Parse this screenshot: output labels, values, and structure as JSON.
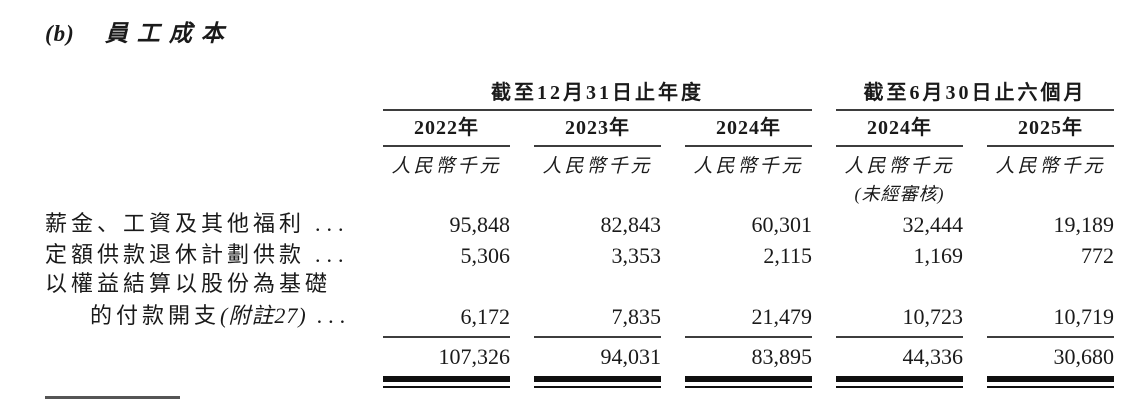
{
  "colors": {
    "text": "#1a1a1a",
    "rule": "#3d3d3d",
    "total_rule": "#101010",
    "footnote_rule": "#555555",
    "background": "#ffffff"
  },
  "heading": {
    "marker": "(b)",
    "title": "員工成本"
  },
  "table": {
    "groups": [
      {
        "label": "截至12月31日止年度",
        "span": 3
      },
      {
        "label": "截至6月30日止六個月",
        "span": 2
      }
    ],
    "columns": [
      {
        "year": "2022年",
        "unit": "人民幣千元",
        "note": ""
      },
      {
        "year": "2023年",
        "unit": "人民幣千元",
        "note": ""
      },
      {
        "year": "2024年",
        "unit": "人民幣千元",
        "note": ""
      },
      {
        "year": "2024年",
        "unit": "人民幣千元",
        "note": "(未經審核)"
      },
      {
        "year": "2025年",
        "unit": "人民幣千元",
        "note": ""
      }
    ],
    "rows": [
      {
        "label": "薪金、工資及其他福利",
        "leader": "...",
        "values": [
          "95,848",
          "82,843",
          "60,301",
          "32,444",
          "19,189"
        ]
      },
      {
        "label": "定額供款退休計劃供款",
        "leader": "...",
        "values": [
          "5,306",
          "3,353",
          "2,115",
          "1,169",
          "772"
        ]
      },
      {
        "label_line1": "以權益結算以股份為基礎",
        "label_line2": "的付款開支",
        "label_note": "(附註27)",
        "leader": "...",
        "values": [
          "6,172",
          "7,835",
          "21,479",
          "10,723",
          "10,719"
        ]
      }
    ],
    "total": {
      "values": [
        "107,326",
        "94,031",
        "83,895",
        "44,336",
        "30,680"
      ]
    }
  }
}
